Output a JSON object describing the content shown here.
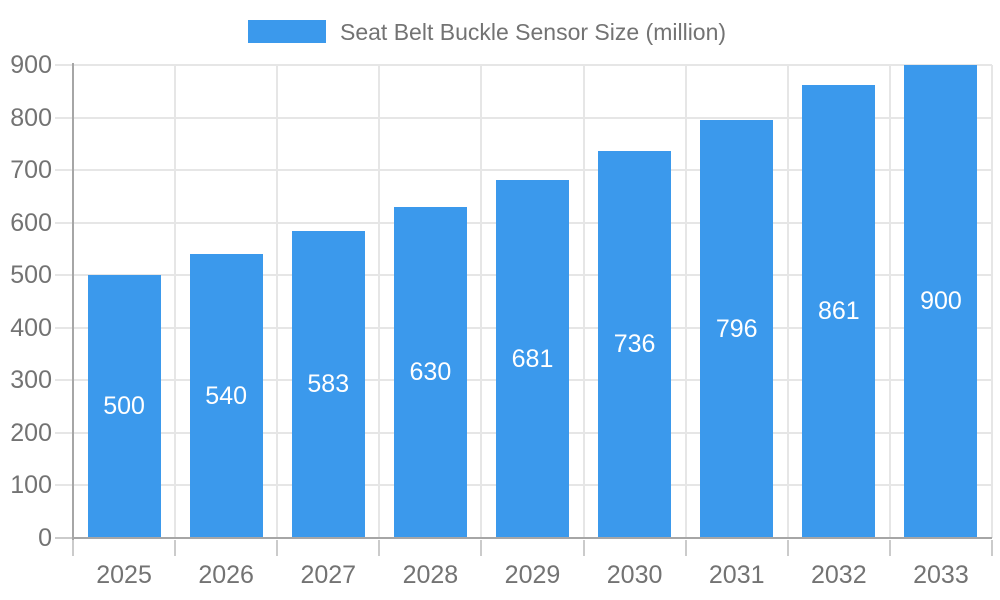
{
  "chart_data": {
    "type": "bar",
    "title": "Seat Belt Buckle Sensor Size (million)",
    "categories": [
      "2025",
      "2026",
      "2027",
      "2028",
      "2029",
      "2030",
      "2031",
      "2032",
      "2033"
    ],
    "values": [
      500,
      540,
      583,
      630,
      681,
      736,
      796,
      861,
      900
    ],
    "xlabel": "",
    "ylabel": "",
    "ylim": [
      0,
      900
    ],
    "yticks": [
      0,
      100,
      200,
      300,
      400,
      500,
      600,
      700,
      800,
      900
    ],
    "grid": true,
    "bar_labels_inside": true,
    "legend_position": "top-center",
    "colors": {
      "bar": "#3B99EC",
      "bar_label_text": "#FFFFFF",
      "axis_text": "#737373",
      "legend_text": "#737373",
      "gridline": "#E6E6E6",
      "tick": "#CBCBCB",
      "axis_line": "#A6A6A6",
      "background": "#FFFFFF"
    }
  }
}
